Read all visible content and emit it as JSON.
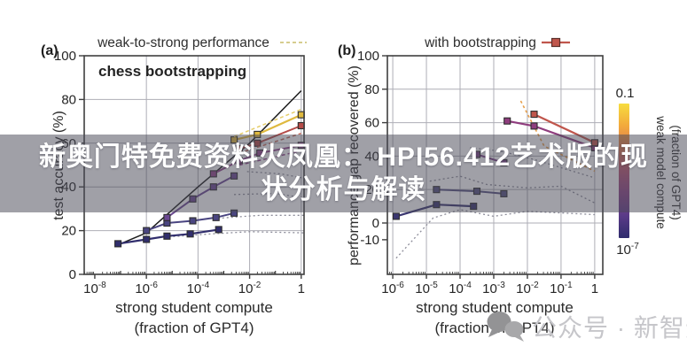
{
  "overlay": {
    "line1": "新奥门特免费资料火凤凰： HPI56.412艺术版的现",
    "line2": "状分析与解读",
    "bg_color": "rgba(73,73,87,0.52)",
    "text_color": "#ffffff"
  },
  "watermark": {
    "icon": "wechat-chat-icon",
    "text": "公众号 · 新智元",
    "text_color": "#c6c6ca",
    "icon_color": "#9c9c9e"
  },
  "chart_data": [
    {
      "id": "a",
      "type": "line",
      "panel_label": "(a)",
      "title": "chess bootstrapping",
      "legend": {
        "label": "weak-to-strong performance",
        "sample": "dashed",
        "color": "#d6cd8f"
      },
      "xlabel_line1": "strong student compute",
      "xlabel_line2": "(fraction of GPT4)",
      "ylabel": "test accuracy (%)",
      "xlim_log10": [
        -8.41,
        0.11
      ],
      "ylim": [
        0,
        100
      ],
      "x_tick_exps": [
        -8,
        -6,
        -4,
        -2,
        0
      ],
      "y_ticks": [
        0,
        20,
        40,
        60,
        80,
        100
      ],
      "grid_x_exps": [
        -6,
        -4,
        -2,
        0
      ],
      "grid_y": [
        20,
        40,
        60,
        80
      ],
      "series": [
        {
          "name": "strong-student-ceiling",
          "color": "#1c1c1c",
          "width": 1.5,
          "dash": null,
          "marker": false,
          "points": [
            [
              -7.2,
              13
            ],
            [
              -6,
              19
            ],
            [
              -4,
              40
            ],
            [
              -2,
              60
            ],
            [
              0,
              84
            ]
          ]
        },
        {
          "name": "weak-perf-dotted-1",
          "color": "#8d8d9a",
          "width": 1.3,
          "dash": "2 3",
          "marker": false,
          "points": [
            [
              -5.3,
              17
            ],
            [
              -3.5,
              18.5
            ],
            [
              -2,
              19.5
            ],
            [
              0.1,
              19
            ]
          ]
        },
        {
          "name": "weak-perf-dotted-2",
          "color": "#8d8d9a",
          "width": 1.3,
          "dash": "2 3",
          "marker": false,
          "points": [
            [
              -3.4,
              25.5
            ],
            [
              -1.6,
              27
            ],
            [
              0.1,
              27
            ]
          ]
        },
        {
          "name": "weak-perf-dotted-3",
          "color": "#8d8d9a",
          "width": 1.3,
          "dash": "2 3",
          "marker": false,
          "points": [
            [
              -2.6,
              36.5
            ],
            [
              -1,
              37
            ],
            [
              0.1,
              35
            ]
          ]
        },
        {
          "name": "weak-perf-dotted-4",
          "color": "#8d8d9a",
          "width": 1.3,
          "dash": "2 3",
          "marker": false,
          "points": [
            [
              -2.1,
              47
            ],
            [
              -0.8,
              46
            ],
            [
              0.1,
              44
            ]
          ]
        },
        {
          "name": "weak-compute-navy",
          "color": "#312e6d",
          "width": 2.2,
          "dash": null,
          "marker": true,
          "points": [
            [
              -7.1,
              14
            ],
            [
              -6,
              16
            ],
            [
              -5.2,
              17.5
            ],
            [
              -4.3,
              18.5
            ],
            [
              -3.2,
              20.5
            ]
          ]
        },
        {
          "name": "weak-compute-slate",
          "color": "#4a4581",
          "width": 2,
          "dash": null,
          "marker": true,
          "points": [
            [
              -6,
              20
            ],
            [
              -5.2,
              23.5
            ],
            [
              -4.2,
              24.5
            ],
            [
              -3.3,
              26
            ],
            [
              -2.6,
              28
            ]
          ]
        },
        {
          "name": "weak-compute-purple",
          "color": "#6b4892",
          "width": 2,
          "dash": null,
          "marker": true,
          "points": [
            [
              -5.2,
              26
            ],
            [
              -4.2,
              34.5
            ],
            [
              -3.4,
              40
            ],
            [
              -2.6,
              45
            ]
          ]
        },
        {
          "name": "weak-compute-mauve",
          "color": "#93488c",
          "width": 2,
          "dash": null,
          "marker": true,
          "points": [
            [
              -3.4,
              46
            ],
            [
              -2.4,
              52
            ],
            [
              -1.6,
              55.5
            ],
            [
              0,
              59
            ]
          ]
        },
        {
          "name": "weak-compute-mauve-dashed",
          "color": "#93488c",
          "width": 1.5,
          "dash": "4 3",
          "marker": false,
          "points": [
            [
              -2.4,
              50
            ],
            [
              0,
              56.5
            ]
          ]
        },
        {
          "name": "weak-compute-red",
          "color": "#b54b48",
          "width": 2,
          "dash": null,
          "marker": true,
          "points": [
            [
              -2.4,
              57.5
            ],
            [
              -1.7,
              60
            ],
            [
              0,
              68
            ]
          ]
        },
        {
          "name": "weak-compute-red-dashed",
          "color": "#c06a5a",
          "width": 1.5,
          "dash": "4 3",
          "marker": false,
          "points": [
            [
              -2.4,
              55.5
            ],
            [
              0,
              64.5
            ]
          ]
        },
        {
          "name": "weak-compute-yellow",
          "color": "#dfb93f",
          "width": 2.2,
          "dash": null,
          "marker": true,
          "points": [
            [
              -2.6,
              61.5
            ],
            [
              -1.7,
              64
            ],
            [
              0,
              73
            ]
          ]
        },
        {
          "name": "weak-compute-yellow-dashed",
          "color": "#e5cd6a",
          "width": 1.5,
          "dash": "4 3",
          "marker": false,
          "points": [
            [
              -2.6,
              63
            ],
            [
              0,
              75.5
            ]
          ]
        }
      ]
    },
    {
      "id": "b",
      "type": "line",
      "panel_label": "(b)",
      "title": "",
      "legend": {
        "label": "with bootstrapping",
        "sample": "line-square",
        "color": "#c0564c"
      },
      "xlabel_line1": "strong student compute",
      "xlabel_line2": "(fraction of GPT4)",
      "ylabel": "performance gap recovered (%)",
      "xlim_log10": [
        -6.16,
        0.24
      ],
      "ylim": [
        -30.7,
        100
      ],
      "x_tick_exps": [
        -6,
        -5,
        -4,
        -3,
        -2,
        -1,
        0
      ],
      "y_ticks": [
        -10,
        0,
        20,
        40,
        60,
        80,
        100
      ],
      "grid_x_exps": [
        -6,
        -5,
        -4,
        -3,
        -2,
        -1,
        0
      ],
      "grid_y": [
        0,
        20,
        40,
        60,
        80
      ],
      "series": [
        {
          "name": "bootstrap-orange-dashed",
          "color": "#e8a04c",
          "width": 1.6,
          "dash": "3 3",
          "marker": false,
          "points": [
            [
              -2.2,
              73
            ],
            [
              -1.5,
              46
            ],
            [
              0,
              31
            ]
          ]
        },
        {
          "name": "gap-dotted-low",
          "color": "#8d8d9a",
          "width": 1.3,
          "dash": "2 3",
          "marker": false,
          "points": [
            [
              -5.9,
              -21
            ],
            [
              -4.8,
              3
            ],
            [
              -4,
              8
            ],
            [
              -3,
              4
            ],
            [
              -2,
              7
            ],
            [
              -1,
              6
            ],
            [
              0,
              5
            ]
          ]
        },
        {
          "name": "gap-dotted-mid",
          "color": "#8d8d9a",
          "width": 1.3,
          "dash": "2 3",
          "marker": false,
          "points": [
            [
              -4.9,
              25
            ],
            [
              -4,
              28
            ],
            [
              -3.2,
              23
            ],
            [
              -2,
              21
            ],
            [
              -1,
              22
            ],
            [
              0,
              12
            ]
          ]
        },
        {
          "name": "gap-dotted-high",
          "color": "#8d8d9a",
          "width": 1.3,
          "dash": "2 3",
          "marker": false,
          "points": [
            [
              -3.7,
              45
            ],
            [
              -2.8,
              43
            ],
            [
              -1.8,
              38
            ],
            [
              0,
              27
            ]
          ]
        },
        {
          "name": "gap-navy",
          "color": "#3a3670",
          "width": 2.2,
          "dash": null,
          "marker": true,
          "points": [
            [
              -5.9,
              4
            ],
            [
              -4.7,
              11
            ],
            [
              -3.6,
              10
            ]
          ]
        },
        {
          "name": "gap-slate",
          "color": "#55517f",
          "width": 2,
          "dash": null,
          "marker": true,
          "points": [
            [
              -4.7,
              20
            ],
            [
              -3.5,
              19
            ],
            [
              -2.7,
              17.5
            ]
          ]
        },
        {
          "name": "gap-plum",
          "color": "#7c4486",
          "width": 2,
          "dash": null,
          "marker": true,
          "points": [
            [
              -3.5,
              41
            ],
            [
              -2.7,
              36
            ]
          ]
        },
        {
          "name": "gap-purple",
          "color": "#8f3d7e",
          "width": 2.2,
          "dash": null,
          "marker": true,
          "points": [
            [
              -2.6,
              61
            ],
            [
              -1.8,
              58
            ],
            [
              0,
              45
            ]
          ]
        },
        {
          "name": "with-bootstrapping-red",
          "color": "#c0564c",
          "width": 2.2,
          "dash": null,
          "marker": true,
          "points": [
            [
              -1.8,
              65
            ],
            [
              0,
              48
            ]
          ]
        }
      ]
    }
  ],
  "colorbar": {
    "top_label": "0.1",
    "bottom_base": "10",
    "bottom_exp": "-7",
    "label_line1": "weak model compute",
    "label_line2": "(fraction of GPT4)",
    "gradient": [
      "#f7dc3e",
      "#f2a93c",
      "#dd7850",
      "#b85573",
      "#8a4387",
      "#5a3b88",
      "#2f2c6d"
    ]
  }
}
